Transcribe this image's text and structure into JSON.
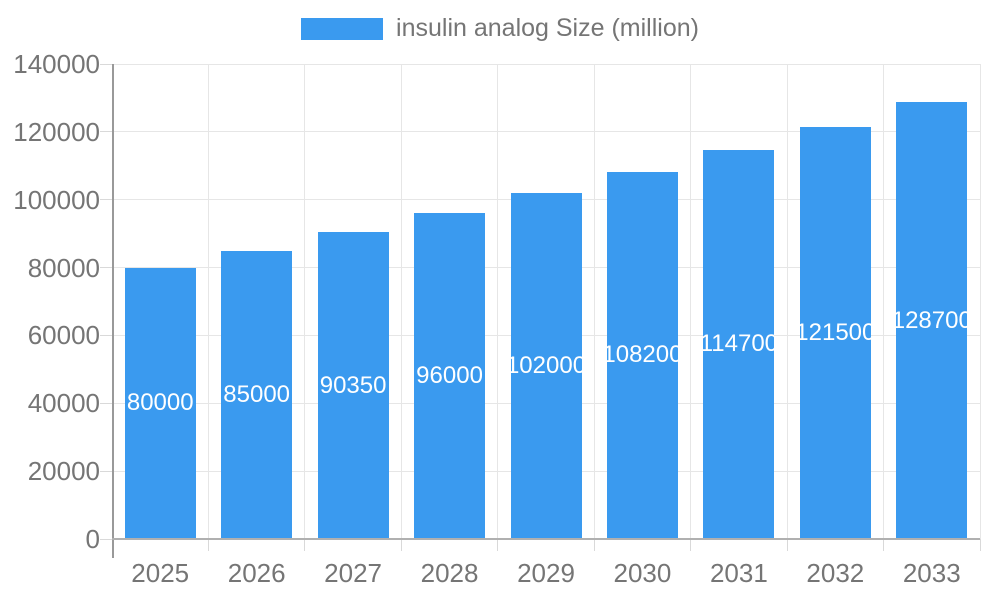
{
  "legend": {
    "label": "insulin analog Size (million)"
  },
  "colors": {
    "bar": "#3a9aef",
    "bar_label": "#ffffff",
    "axis_label": "#757575",
    "grid": "#e6e6e6",
    "axis_line": "#b0b0b0",
    "y_axis_line": "#999999",
    "tick": "#d9d9d9",
    "background": "#ffffff"
  },
  "chart_data": {
    "type": "bar",
    "title": "insulin analog Size (million)",
    "series": [
      {
        "name": "insulin analog Size (million)",
        "values": [
          80000,
          85000,
          90350,
          96000,
          102000,
          108200,
          114700,
          121500,
          128700
        ]
      }
    ],
    "categories": [
      "2025",
      "2026",
      "2027",
      "2028",
      "2029",
      "2030",
      "2031",
      "2032",
      "2033"
    ],
    "bar_value_labels": [
      "80000",
      "85000",
      "90350",
      "96000",
      "102000",
      "108200",
      "114700",
      "121500",
      "128700"
    ],
    "xlabel": "",
    "ylabel": "",
    "ylim": [
      0,
      140000
    ],
    "y_ticks": [
      0,
      20000,
      40000,
      60000,
      80000,
      100000,
      120000,
      140000
    ],
    "grid": true,
    "legend_position": "top",
    "bar_labels_inside": true
  }
}
